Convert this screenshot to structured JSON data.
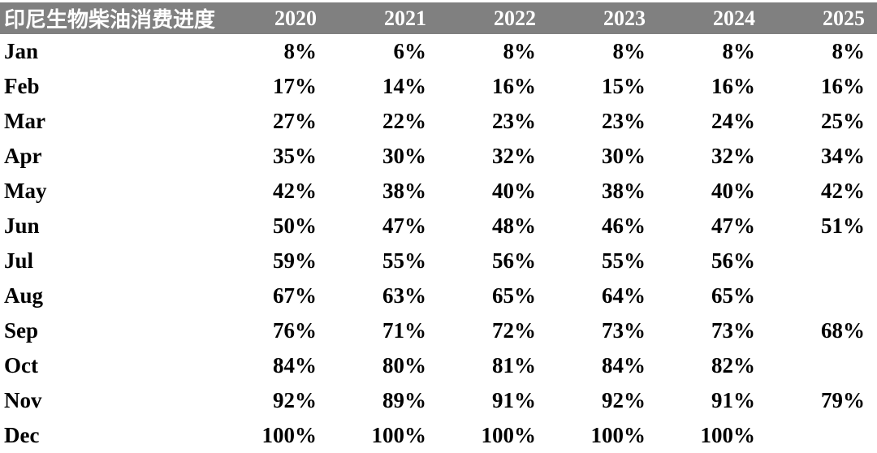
{
  "title": "印尼生物柴油消费进度",
  "colors": {
    "header_bg": "#808080",
    "header_text": "#ffffff",
    "body_text": "#000000",
    "background": "#ffffff"
  },
  "table": {
    "header": {
      "title": "印尼生物柴油消费进度",
      "years": [
        "2020",
        "2021",
        "2022",
        "2023",
        "2024",
        "2025"
      ]
    },
    "rows": [
      {
        "month": "Jan",
        "values": [
          "8%",
          "6%",
          "8%",
          "8%",
          "8%",
          "8%"
        ]
      },
      {
        "month": "Feb",
        "values": [
          "17%",
          "14%",
          "16%",
          "15%",
          "16%",
          "16%"
        ]
      },
      {
        "month": "Mar",
        "values": [
          "27%",
          "22%",
          "23%",
          "23%",
          "24%",
          "25%"
        ]
      },
      {
        "month": "Apr",
        "values": [
          "35%",
          "30%",
          "32%",
          "30%",
          "32%",
          "34%"
        ]
      },
      {
        "month": "May",
        "values": [
          "42%",
          "38%",
          "40%",
          "38%",
          "40%",
          "42%"
        ]
      },
      {
        "month": "Jun",
        "values": [
          "50%",
          "47%",
          "48%",
          "46%",
          "47%",
          "51%"
        ]
      },
      {
        "month": "Jul",
        "values": [
          "59%",
          "55%",
          "56%",
          "55%",
          "56%",
          ""
        ]
      },
      {
        "month": "Aug",
        "values": [
          "67%",
          "63%",
          "65%",
          "64%",
          "65%",
          ""
        ]
      },
      {
        "month": "Sep",
        "values": [
          "76%",
          "71%",
          "72%",
          "73%",
          "73%",
          "68%"
        ]
      },
      {
        "month": "Oct",
        "values": [
          "84%",
          "80%",
          "81%",
          "84%",
          "82%",
          ""
        ]
      },
      {
        "month": "Nov",
        "values": [
          "92%",
          "89%",
          "91%",
          "92%",
          "91%",
          "79%"
        ]
      },
      {
        "month": "Dec",
        "values": [
          "100%",
          "100%",
          "100%",
          "100%",
          "100%",
          ""
        ]
      }
    ]
  },
  "chart_data": {
    "type": "table",
    "title": "印尼生物柴油消费进度",
    "unit": "%",
    "categories": [
      "Jan",
      "Feb",
      "Mar",
      "Apr",
      "May",
      "Jun",
      "Jul",
      "Aug",
      "Sep",
      "Oct",
      "Nov",
      "Dec"
    ],
    "series": [
      {
        "name": "2020",
        "values": [
          8,
          17,
          27,
          35,
          42,
          50,
          59,
          67,
          76,
          84,
          92,
          100
        ]
      },
      {
        "name": "2021",
        "values": [
          6,
          14,
          22,
          30,
          38,
          47,
          55,
          63,
          71,
          80,
          89,
          100
        ]
      },
      {
        "name": "2022",
        "values": [
          8,
          16,
          23,
          32,
          40,
          48,
          56,
          65,
          72,
          81,
          91,
          100
        ]
      },
      {
        "name": "2023",
        "values": [
          8,
          15,
          23,
          30,
          38,
          46,
          55,
          64,
          73,
          84,
          92,
          100
        ]
      },
      {
        "name": "2024",
        "values": [
          8,
          16,
          24,
          32,
          40,
          47,
          56,
          65,
          73,
          82,
          91,
          100
        ]
      },
      {
        "name": "2025",
        "values": [
          8,
          16,
          25,
          34,
          42,
          51,
          null,
          null,
          68,
          null,
          79,
          null
        ]
      }
    ]
  }
}
